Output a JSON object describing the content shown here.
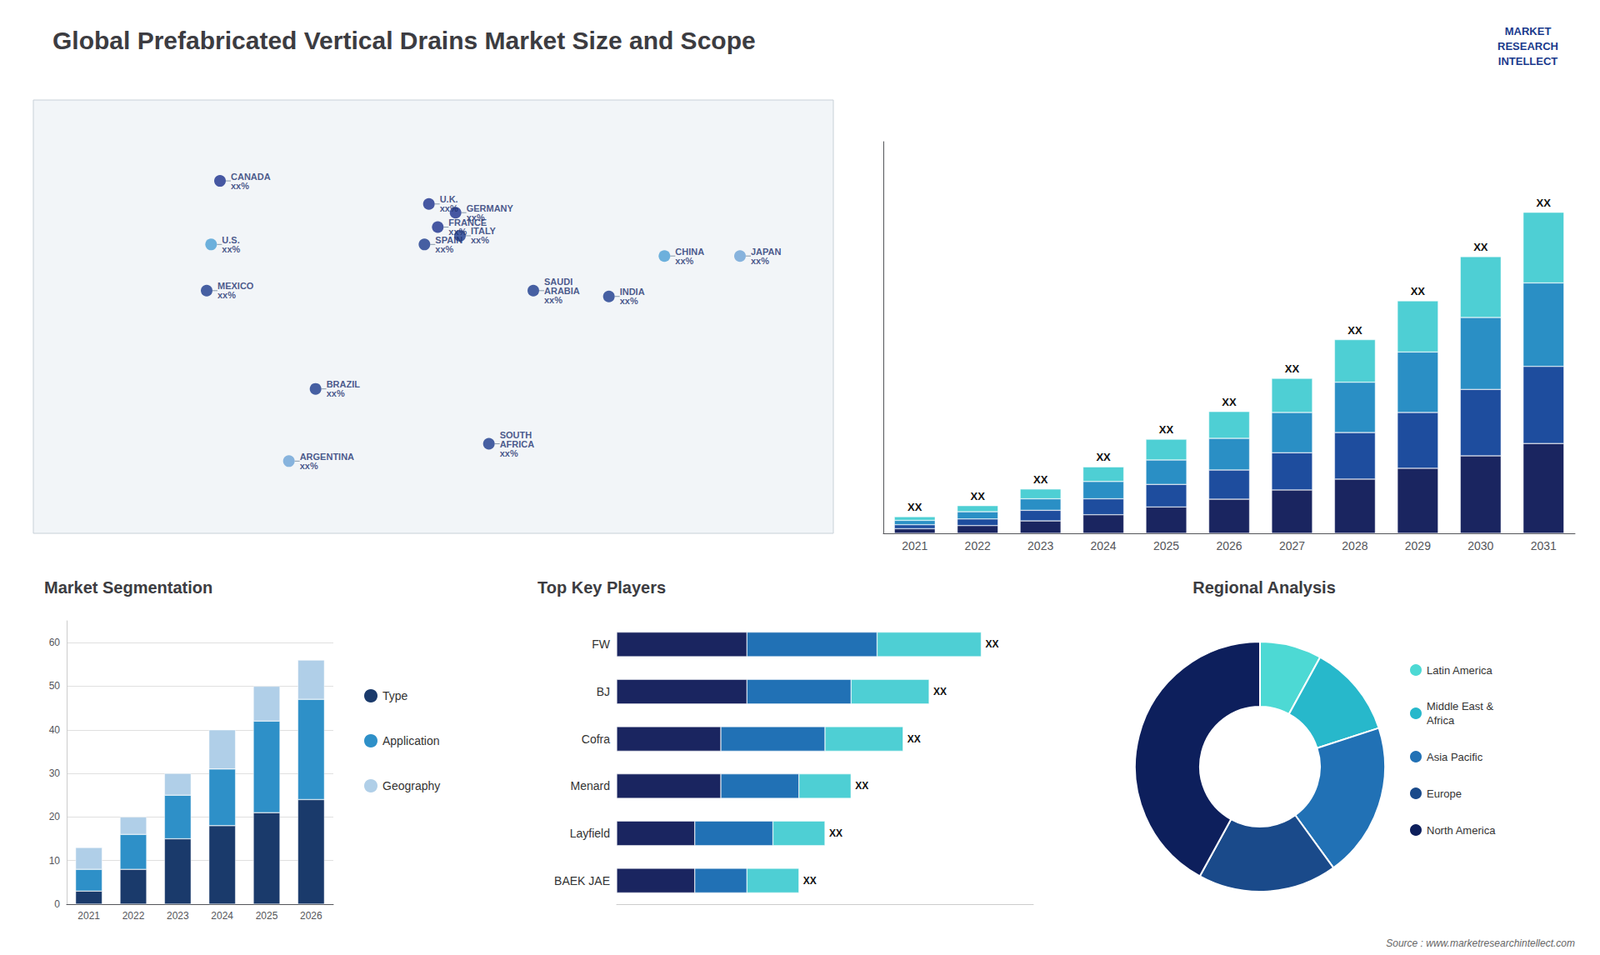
{
  "chart_data": [
    {
      "type": "bar",
      "title": "Global Prefabricated Vertical Drains Market Size and Scope",
      "categories": [
        "2021",
        "2022",
        "2023",
        "2024",
        "2025",
        "2026",
        "2027",
        "2028",
        "2029",
        "2030",
        "2031"
      ],
      "series": [
        {
          "color": "#1a2560",
          "values": [
            0.84,
            1.4,
            2.24,
            3.36,
            4.76,
            6.16,
            7.84,
            9.8,
            11.76,
            14,
            16.24
          ]
        },
        {
          "color": "#1e4d9e",
          "values": [
            0.72,
            1.2,
            1.92,
            2.88,
            4.08,
            5.28,
            6.72,
            8.4,
            10.08,
            12,
            13.92
          ]
        },
        {
          "color": "#2a8fc5",
          "values": [
            0.78,
            1.3,
            2.08,
            3.12,
            4.42,
            5.72,
            7.28,
            9.1,
            10.92,
            13,
            15.08
          ]
        },
        {
          "color": "#4ecfd4",
          "values": [
            0.66,
            1.1,
            1.76,
            2.64,
            3.74,
            4.84,
            6.16,
            7.7,
            9.24,
            11,
            12.76
          ]
        }
      ],
      "stacked": true,
      "ylim": [
        0,
        70.76
      ],
      "tick_labels": "x",
      "annotations": [
        {
          "category": "2021",
          "text": "XX"
        },
        {
          "category": "2022",
          "text": "XX"
        },
        {
          "category": "2023",
          "text": "XX"
        },
        {
          "category": "2024",
          "text": "XX"
        },
        {
          "category": "2025",
          "text": "XX"
        },
        {
          "category": "2026",
          "text": "XX"
        },
        {
          "category": "2027",
          "text": "XX"
        },
        {
          "category": "2028",
          "text": "XX"
        },
        {
          "category": "2029",
          "text": "XX"
        },
        {
          "category": "2030",
          "text": "XX"
        },
        {
          "category": "2031",
          "text": "XX"
        },
        {
          "text": "MARKET\nRESEARCH\nINTELLECT"
        },
        {
          "text": "Source : www.marketresearchintellect.com"
        }
      ]
    },
    {
      "type": "scatter",
      "x": [
        -96,
        -100,
        -102,
        -53,
        -65,
        -2,
        2,
        10,
        -4,
        12,
        45,
        25,
        104,
        79,
        138
      ],
      "y": [
        62,
        40,
        24,
        -10,
        -35,
        54,
        46,
        51,
        40,
        43,
        24,
        -29,
        36,
        22,
        36
      ],
      "colors": [
        "#1a2f8c",
        "#4a9fd4",
        "#1a3a8c",
        "#1a3a8c",
        "#6ba3d6",
        "#1a2f8c",
        "#1a2f8c",
        "#1a2f8c",
        "#1a3a8c",
        "#1a3a8c",
        "#1a3a8c",
        "#1a3a8c",
        "#4a9fd4",
        "#1a3a8c",
        "#6ba3d6"
      ],
      "annotations": [
        "CANADA\nxx%",
        "U.S.\nxx%",
        "MEXICO\nxx%",
        "BRAZIL\nxx%",
        "ARGENTINA\nxx%",
        "U.K.\nxx%",
        "FRANCE\nxx%",
        "GERMANY\nxx%",
        "SPAIN\nxx%",
        "ITALY\nxx%",
        "SAUDI\nARABIA\nxx%",
        "SOUTH\nAFRICA\nxx%",
        "CHINA\nxx%",
        "INDIA\nxx%",
        "JAPAN\nxx%"
      ],
      "xlim": [
        -180,
        180
      ],
      "ylim": [
        -60,
        90
      ],
      "tick_labels": false
    },
    {
      "type": "bar",
      "title": "Market Segmentation",
      "categories": [
        "2021",
        "2022",
        "2023",
        "2024",
        "2025",
        "2026"
      ],
      "series": [
        {
          "name": "Type",
          "color": "#1a3a6b",
          "values": [
            3,
            8,
            15,
            18,
            21,
            24
          ]
        },
        {
          "name": "Application",
          "color": "#2e90c8",
          "values": [
            5,
            8,
            10,
            13,
            21,
            23
          ]
        },
        {
          "name": "Geography",
          "color": "#b0cfe8",
          "values": [
            5,
            4,
            5,
            9,
            8,
            9
          ]
        }
      ],
      "stacked": true,
      "ylim": [
        0,
        65
      ],
      "yticks": [
        0,
        10,
        20,
        30,
        40,
        50,
        60
      ],
      "grid": true,
      "legend": "right"
    },
    {
      "type": "bar",
      "title": "Top Key Players",
      "orientation": "horizontal",
      "stacked": true,
      "categories": [
        "FW",
        "BJ",
        "Cofra",
        "Menard",
        "Layfield",
        "BAEK JAE"
      ],
      "series": [
        {
          "color": "#1a2560",
          "values": [
            5,
            5,
            4,
            4,
            3,
            3
          ]
        },
        {
          "color": "#2171b5",
          "values": [
            5,
            4,
            4,
            3,
            3,
            2
          ]
        },
        {
          "color": "#4ecfd4",
          "values": [
            4,
            3,
            3,
            2,
            2,
            2
          ]
        }
      ],
      "xlim": [
        0,
        16
      ],
      "tick_labels": "y",
      "annotations": [
        {
          "category": "FW",
          "text": "XX"
        },
        {
          "category": "BJ",
          "text": "XX"
        },
        {
          "category": "Cofra",
          "text": "XX"
        },
        {
          "category": "Menard",
          "text": "XX"
        },
        {
          "category": "Layfield",
          "text": "XX"
        },
        {
          "category": "BAEK JAE",
          "text": "XX"
        }
      ]
    },
    {
      "type": "donut",
      "title": "Regional Analysis",
      "categories": [
        "Latin America",
        "Middle East &\nAfrica",
        "Asia Pacific",
        "Europe",
        "North America"
      ],
      "values": [
        8,
        12,
        20,
        18,
        42
      ],
      "colors": [
        "#4dd9d4",
        "#27b8cb",
        "#2171b5",
        "#1a4a8a",
        "#0d1f5c"
      ],
      "legend": "right"
    }
  ]
}
